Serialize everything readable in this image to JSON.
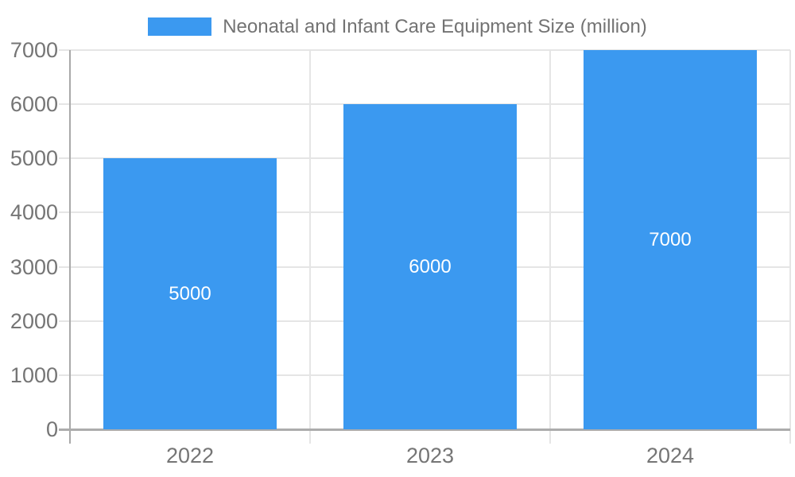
{
  "chart_data": {
    "type": "bar",
    "title": "Neonatal and Infant Care Equipment Size (million)",
    "categories": [
      "2022",
      "2023",
      "2024"
    ],
    "values": [
      5000,
      6000,
      7000
    ],
    "bar_labels": [
      "5000",
      "6000",
      "7000"
    ],
    "xlabel": "",
    "ylabel": "",
    "ylim": [
      0,
      7000
    ],
    "ytick_step": 1000,
    "ytick_labels": [
      "0",
      "1000",
      "2000",
      "3000",
      "4000",
      "5000",
      "6000",
      "7000"
    ],
    "legend_position": "top-center",
    "grid": true,
    "colors": {
      "bar": "#3B99F0",
      "grid_line": "#E5E5E5",
      "axis_baseline": "#ACACAC",
      "axis_y_line": "#A9A9A9",
      "tick_text": "#757575",
      "title_text": "#737373",
      "bar_label_text": "#FFFFFF",
      "background": "#FFFFFF"
    }
  }
}
